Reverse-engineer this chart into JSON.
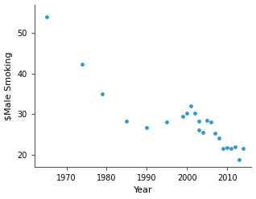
{
  "x": [
    1965,
    1974,
    1979,
    1985,
    1990,
    1995,
    1999,
    2000,
    2001,
    2002,
    2003,
    2003,
    2004,
    2005,
    2006,
    2007,
    2008,
    2009,
    2010,
    2011,
    2012,
    2013,
    2014
  ],
  "y": [
    54.0,
    42.2,
    35.0,
    28.2,
    26.7,
    28.0,
    29.5,
    30.2,
    32.0,
    30.3,
    28.3,
    26.0,
    25.5,
    28.5,
    28.0,
    25.3,
    24.0,
    21.5,
    21.8,
    21.5,
    22.0,
    18.7,
    21.5
  ],
  "dot_color": "#3399CC",
  "xlabel": "Year",
  "ylabel": "$Male Smoking",
  "xlim": [
    1962,
    2016
  ],
  "ylim": [
    17,
    57
  ],
  "xticks": [
    1970,
    1980,
    1990,
    2000,
    2010
  ],
  "yticks": [
    20,
    30,
    40,
    50
  ],
  "dot_size": 12,
  "tick_labelsize": 7,
  "label_fontsize": 8,
  "spine_color": "#555555"
}
